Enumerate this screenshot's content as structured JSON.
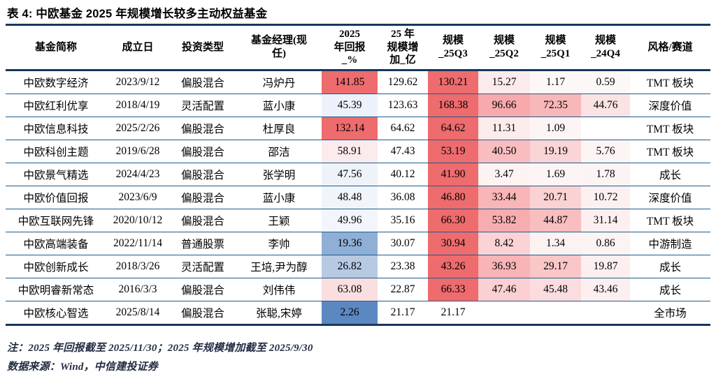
{
  "title": "表 4: 中欧基金 2025 年规模增长较多主动权益基金",
  "colors": {
    "heat_red": "#ee6b6e",
    "border_navy_thick": "#17375d",
    "border_navy_thin": "#1f5c8a",
    "note_text": "#232c42"
  },
  "table": {
    "columns": [
      "基金简称",
      "成立日",
      "投资类型",
      "基金经理(现\n任)",
      "2025\n年回报\n_%",
      "25 年\n规模增\n加_亿",
      "规模\n_25Q3",
      "规模\n_25Q2",
      "规模\n_25Q1",
      "规模\n_24Q4",
      "风格/赛道"
    ],
    "rows": [
      {
        "cells": [
          "中欧数字经济",
          "2023/9/12",
          "偏股混合",
          "冯炉丹",
          "141.85",
          "129.62",
          "130.21",
          "15.27",
          "1.17",
          "0.59",
          "TMT 板块"
        ],
        "bg": [
          "",
          "",
          "",
          "",
          "#ee6b6e",
          "",
          "#ee6b6e",
          "#fcebec",
          "#fdf7f7",
          "#fdf8f8",
          ""
        ]
      },
      {
        "cells": [
          "中欧红利优享",
          "2018/4/19",
          "灵活配置",
          "蓝小康",
          "45.39",
          "123.63",
          "168.38",
          "96.66",
          "72.35",
          "44.76",
          "深度价值"
        ],
        "bg": [
          "",
          "",
          "",
          "",
          "#edf2fa",
          "",
          "#ee6b6e",
          "#f7a9ac",
          "#f8b7b9",
          "#fbe3e4",
          ""
        ]
      },
      {
        "cells": [
          "中欧信息科技",
          "2025/2/26",
          "偏股混合",
          "杜厚良",
          "132.14",
          "64.62",
          "64.62",
          "11.31",
          "1.09",
          "",
          "TMT 板块"
        ],
        "bg": [
          "",
          "",
          "",
          "",
          "#ee6b6e",
          "",
          "#ee6b6e",
          "#fcecec",
          "#fdf4f5",
          "",
          ""
        ]
      },
      {
        "cells": [
          "中欧科创主题",
          "2019/6/28",
          "偏股混合",
          "邵洁",
          "58.91",
          "47.43",
          "53.19",
          "40.50",
          "19.19",
          "5.76",
          "TMT 板块"
        ],
        "bg": [
          "",
          "",
          "",
          "",
          "#fcebec",
          "",
          "#ee6b6e",
          "#f9bdbf",
          "#fbd4d5",
          "#fdf4f4",
          ""
        ]
      },
      {
        "cells": [
          "中欧景气精选",
          "2024/4/23",
          "偏股混合",
          "张学明",
          "47.56",
          "40.12",
          "41.90",
          "3.47",
          "1.69",
          "1.78",
          "成长"
        ],
        "bg": [
          "",
          "",
          "",
          "",
          "#eef2f9",
          "",
          "#ee6b6e",
          "#fdf3f3",
          "#fdf5f5",
          "#fcf4f4",
          ""
        ]
      },
      {
        "cells": [
          "中欧价值回报",
          "2023/6/9",
          "偏股混合",
          "蓝小康",
          "48.48",
          "36.08",
          "46.80",
          "33.44",
          "20.71",
          "10.72",
          "深度价值"
        ],
        "bg": [
          "",
          "",
          "",
          "",
          "#f1f5fa",
          "",
          "#ee6b6e",
          "#f8b6b8",
          "#fbd2d3",
          "#fdf0f0",
          ""
        ]
      },
      {
        "cells": [
          "中欧互联网先锋",
          "2020/10/12",
          "偏股混合",
          "王颖",
          "49.96",
          "35.16",
          "66.30",
          "53.82",
          "44.87",
          "31.14",
          "TMT 板块"
        ],
        "bg": [
          "",
          "",
          "",
          "",
          "#f2f5fb",
          "",
          "#ee6b6e",
          "#f7adb0",
          "#f9bec0",
          "#fdeff0",
          ""
        ]
      },
      {
        "cells": [
          "中欧高端装备",
          "2022/11/14",
          "普通股票",
          "李帅",
          "19.36",
          "30.07",
          "30.94",
          "8.42",
          "1.34",
          "0.86",
          "中游制造"
        ],
        "bg": [
          "",
          "",
          "",
          "",
          "#8fafd7",
          "",
          "#ee6b6e",
          "#fbd3d4",
          "#fdf2f2",
          "#fcf3f3",
          ""
        ]
      },
      {
        "cells": [
          "中欧创新成长",
          "2018/3/26",
          "灵活配置",
          "王培,尹为醇",
          "26.82",
          "23.38",
          "43.26",
          "36.93",
          "29.17",
          "19.87",
          "成长"
        ],
        "bg": [
          "",
          "",
          "",
          "",
          "#b7c9e3",
          "",
          "#ee6b6e",
          "#f8b4b6",
          "#fac7c9",
          "#fdeff0",
          ""
        ]
      },
      {
        "cells": [
          "中欧明睿新常态",
          "2016/3/3",
          "偏股混合",
          "刘伟伟",
          "63.08",
          "22.87",
          "66.33",
          "47.46",
          "45.48",
          "43.46",
          "成长"
        ],
        "bg": [
          "",
          "",
          "",
          "",
          "#fbdee0",
          "",
          "#ee6b6e",
          "#fbd0d2",
          "#fbdddf",
          "#fdeeef",
          ""
        ]
      },
      {
        "cells": [
          "中欧核心智选",
          "2025/8/14",
          "偏股混合",
          "张聪,宋婷",
          "2.26",
          "21.17",
          "21.17",
          "",
          "",
          "",
          "全市场"
        ],
        "bg": [
          "",
          "",
          "",
          "",
          "#5c88c2",
          "",
          "",
          "",
          "",
          "",
          ""
        ]
      }
    ]
  },
  "notes": {
    "note1": "注：2025 年回报截至 2025/11/30；2025 年规模增加截至 2025/9/30",
    "source": "数据来源：Wind，中信建投证券"
  }
}
